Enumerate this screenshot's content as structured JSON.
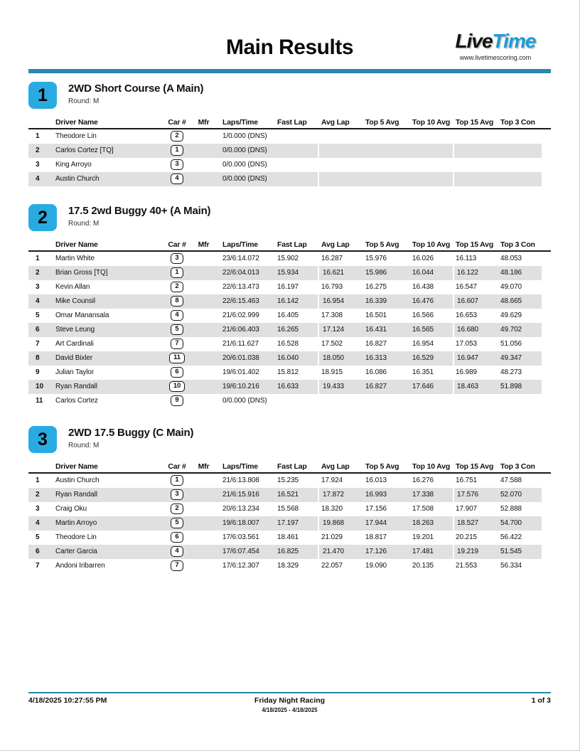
{
  "page": {
    "title": "Main Results"
  },
  "logo": {
    "live": "Live",
    "time": "Time",
    "url": "www.livetimescoring.com"
  },
  "columns": [
    "Driver Name",
    "Car #",
    "Mfr",
    "Laps/Time",
    "Fast Lap",
    "Avg Lap",
    "Top 5 Avg",
    "Top 10 Avg",
    "Top 15 Avg",
    "Top 3 Con"
  ],
  "sections": [
    {
      "number": "1",
      "title": "2WD Short Course (A Main)",
      "round": "Round: M",
      "rows": [
        {
          "pos": "1",
          "driver": "Theodore Lin",
          "car": "2",
          "mfr": "",
          "laps": "1/0.000 (DNS)",
          "fast": "",
          "avg": "",
          "top5": "",
          "top10": "",
          "top15": "",
          "top3": ""
        },
        {
          "pos": "2",
          "driver": "Carlos Cortez [TQ]",
          "car": "1",
          "mfr": "",
          "laps": "0/0.000 (DNS)",
          "fast": "",
          "avg": "",
          "top5": "",
          "top10": "",
          "top15": "",
          "top3": ""
        },
        {
          "pos": "3",
          "driver": "King Arroyo",
          "car": "3",
          "mfr": "",
          "laps": "0/0.000 (DNS)",
          "fast": "",
          "avg": "",
          "top5": "",
          "top10": "",
          "top15": "",
          "top3": ""
        },
        {
          "pos": "4",
          "driver": "Austin Church",
          "car": "4",
          "mfr": "",
          "laps": "0/0.000 (DNS)",
          "fast": "",
          "avg": "",
          "top5": "",
          "top10": "",
          "top15": "",
          "top3": ""
        }
      ]
    },
    {
      "number": "2",
      "title": "17.5 2wd Buggy 40+ (A Main)",
      "round": "Round: M",
      "rows": [
        {
          "pos": "1",
          "driver": "Martin White",
          "car": "3",
          "mfr": "",
          "laps": "23/6:14.072",
          "fast": "15.902",
          "avg": "16.287",
          "top5": "15.976",
          "top10": "16.026",
          "top15": "16.113",
          "top3": "48.053"
        },
        {
          "pos": "2",
          "driver": "Brian Gross [TQ]",
          "car": "1",
          "mfr": "",
          "laps": "22/6:04.013",
          "fast": "15.934",
          "avg": "16.621",
          "top5": "15.986",
          "top10": "16.044",
          "top15": "16.122",
          "top3": "48.186"
        },
        {
          "pos": "3",
          "driver": "Kevin Allan",
          "car": "2",
          "mfr": "",
          "laps": "22/6:13.473",
          "fast": "16.197",
          "avg": "16.793",
          "top5": "16.275",
          "top10": "16.438",
          "top15": "16.547",
          "top3": "49.070"
        },
        {
          "pos": "4",
          "driver": "Mike Counsil",
          "car": "8",
          "mfr": "",
          "laps": "22/6:15.463",
          "fast": "16.142",
          "avg": "16.954",
          "top5": "16.339",
          "top10": "16.476",
          "top15": "16.607",
          "top3": "48.665"
        },
        {
          "pos": "5",
          "driver": "Omar Manansala",
          "car": "4",
          "mfr": "",
          "laps": "21/6:02.999",
          "fast": "16.405",
          "avg": "17.308",
          "top5": "16.501",
          "top10": "16.566",
          "top15": "16.653",
          "top3": "49.629"
        },
        {
          "pos": "6",
          "driver": "Steve Leung",
          "car": "5",
          "mfr": "",
          "laps": "21/6:06.403",
          "fast": "16.265",
          "avg": "17.124",
          "top5": "16.431",
          "top10": "16.565",
          "top15": "16.680",
          "top3": "49.702"
        },
        {
          "pos": "7",
          "driver": "Art Cardinali",
          "car": "7",
          "mfr": "",
          "laps": "21/6:11.627",
          "fast": "16.528",
          "avg": "17.502",
          "top5": "16.827",
          "top10": "16.954",
          "top15": "17.053",
          "top3": "51.056"
        },
        {
          "pos": "8",
          "driver": "David Bixler",
          "car": "11",
          "mfr": "",
          "laps": "20/6:01.038",
          "fast": "16.040",
          "avg": "18.050",
          "top5": "16.313",
          "top10": "16.529",
          "top15": "16.947",
          "top3": "49.347"
        },
        {
          "pos": "9",
          "driver": "Julian Taylor",
          "car": "6",
          "mfr": "",
          "laps": "19/6:01.402",
          "fast": "15.812",
          "avg": "18.915",
          "top5": "16.086",
          "top10": "16.351",
          "top15": "16.989",
          "top3": "48.273"
        },
        {
          "pos": "10",
          "driver": "Ryan Randall",
          "car": "10",
          "mfr": "",
          "laps": "19/6:10.216",
          "fast": "16.633",
          "avg": "19.433",
          "top5": "16.827",
          "top10": "17.646",
          "top15": "18.463",
          "top3": "51.898"
        },
        {
          "pos": "11",
          "driver": "Carlos Cortez",
          "car": "9",
          "mfr": "",
          "laps": "0/0.000 (DNS)",
          "fast": "",
          "avg": "",
          "top5": "",
          "top10": "",
          "top15": "",
          "top3": ""
        }
      ]
    },
    {
      "number": "3",
      "title": "2WD 17.5 Buggy (C Main)",
      "round": "Round: M",
      "rows": [
        {
          "pos": "1",
          "driver": "Austin Church",
          "car": "1",
          "mfr": "",
          "laps": "21/6:13.808",
          "fast": "15.235",
          "avg": "17.924",
          "top5": "16.013",
          "top10": "16.276",
          "top15": "16.751",
          "top3": "47.588"
        },
        {
          "pos": "2",
          "driver": "Ryan Randall",
          "car": "3",
          "mfr": "",
          "laps": "21/6:15.916",
          "fast": "16.521",
          "avg": "17.872",
          "top5": "16.993",
          "top10": "17.338",
          "top15": "17.576",
          "top3": "52.070"
        },
        {
          "pos": "3",
          "driver": "Craig Oku",
          "car": "2",
          "mfr": "",
          "laps": "20/6:13.234",
          "fast": "15.568",
          "avg": "18.320",
          "top5": "17.156",
          "top10": "17.508",
          "top15": "17.907",
          "top3": "52.888"
        },
        {
          "pos": "4",
          "driver": "Martin Arroyo",
          "car": "5",
          "mfr": "",
          "laps": "19/6:18.007",
          "fast": "17.197",
          "avg": "19.868",
          "top5": "17.944",
          "top10": "18.263",
          "top15": "18.527",
          "top3": "54.700"
        },
        {
          "pos": "5",
          "driver": "Theodore Lin",
          "car": "6",
          "mfr": "",
          "laps": "17/6:03.561",
          "fast": "18.461",
          "avg": "21.029",
          "top5": "18.817",
          "top10": "19.201",
          "top15": "20.215",
          "top3": "56.422"
        },
        {
          "pos": "6",
          "driver": "Carter Garcia",
          "car": "4",
          "mfr": "",
          "laps": "17/6:07.454",
          "fast": "16.825",
          "avg": "21.470",
          "top5": "17.126",
          "top10": "17.481",
          "top15": "19.219",
          "top3": "51.545"
        },
        {
          "pos": "7",
          "driver": "Andoni Iribarren",
          "car": "7",
          "mfr": "",
          "laps": "17/6:12.307",
          "fast": "18.329",
          "avg": "22.057",
          "top5": "19.090",
          "top10": "20.135",
          "top15": "21.553",
          "top3": "56.334"
        }
      ]
    }
  ],
  "footer": {
    "printed": "4/18/2025 10:27:55 PM",
    "event": "Friday Night Racing",
    "dates": "4/18/2025 - 4/18/2025",
    "page": "1 of 3"
  },
  "colors": {
    "accent": "#2987ad",
    "badge": "#29abe2",
    "logoBlue": "#1b9cd8",
    "stripe": "#e0e0e0"
  }
}
